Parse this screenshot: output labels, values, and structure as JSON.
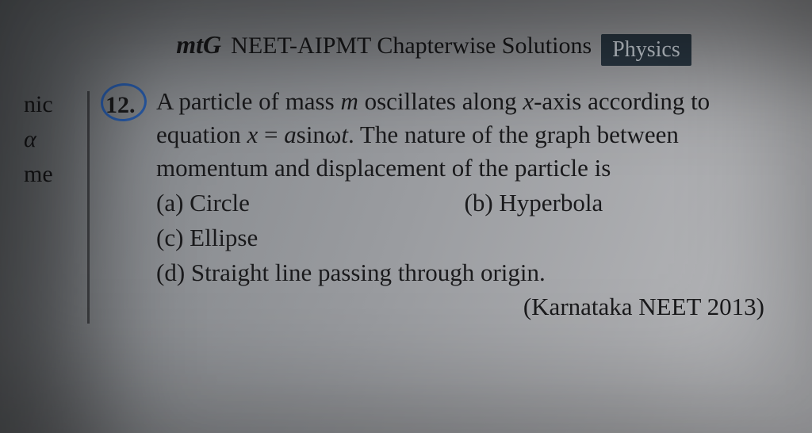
{
  "header": {
    "logo": "mtG",
    "title": "NEET-AIPMT Chapterwise Solutions",
    "badge": "Physics"
  },
  "margin": {
    "line1": "nic",
    "line2": "α",
    "line3": "me"
  },
  "question": {
    "number": "12.",
    "text_parts": {
      "p1": "A particle of mass ",
      "var1": "m",
      "p2": " oscillates along ",
      "var2": "x",
      "p3": "-axis according to equation ",
      "var3": "x",
      "p4": " = ",
      "var4": "a",
      "p5": "sinω",
      "var5": "t",
      "p6": ". The nature of the graph between momentum and displacement of the particle is"
    },
    "options": {
      "a": "(a) Circle",
      "b": "(b) Hyperbola",
      "c": "(c) Ellipse",
      "d": "(d) Straight line passing through origin."
    },
    "source": "(Karnataka NEET 2013)"
  }
}
